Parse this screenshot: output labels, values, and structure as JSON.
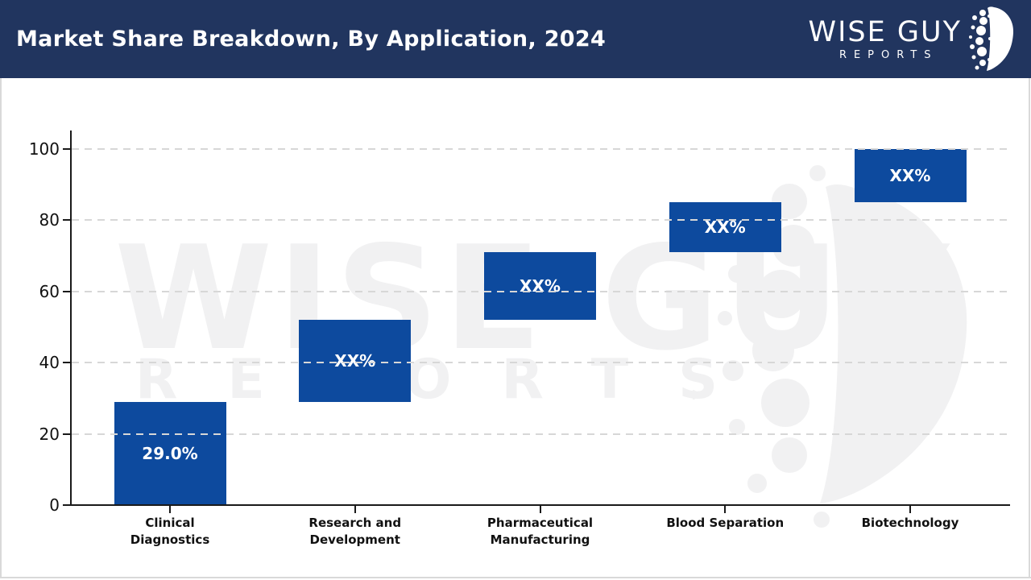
{
  "header": {
    "title": "Market Share Breakdown, By Application, 2024",
    "logo": {
      "line1": "WISE GUY",
      "line2": "REPORTS"
    }
  },
  "watermark": {
    "line1": "WISE GUY",
    "line2": "REPORTS"
  },
  "colors": {
    "header_bg": "#21355f",
    "bar": "#0d4a9e",
    "gridline": "#d7d7d7",
    "axis": "#1a1a1a",
    "watermark": "#f1f1f2"
  },
  "chart_data": {
    "type": "bar",
    "subtype": "waterfall",
    "title": "Market Share Breakdown, By Application, 2024",
    "categories": [
      "Clinical Diagnostics",
      "Research and Development",
      "Pharmaceutical Manufacturing",
      "Blood Separation",
      "Biotechnology"
    ],
    "category_lines": [
      [
        "Clinical",
        "Diagnostics"
      ],
      [
        "Research and",
        "Development"
      ],
      [
        "Pharmaceutical",
        "Manufacturing"
      ],
      [
        "Blood Separation"
      ],
      [
        "Biotechnology"
      ]
    ],
    "segments": [
      [
        0,
        29
      ],
      [
        29,
        52
      ],
      [
        52,
        71
      ],
      [
        71,
        85
      ],
      [
        85,
        100
      ]
    ],
    "values": [
      29,
      23,
      19,
      14,
      15
    ],
    "bar_labels": [
      "29.0%",
      "XX%",
      "XX%",
      "XX%",
      "XX%"
    ],
    "xlabel": "",
    "ylabel": "",
    "ylim": [
      0,
      100
    ],
    "yticks": [
      0,
      20,
      40,
      60,
      80,
      100
    ],
    "grid": "horizontal-dashed",
    "legend": "none"
  }
}
